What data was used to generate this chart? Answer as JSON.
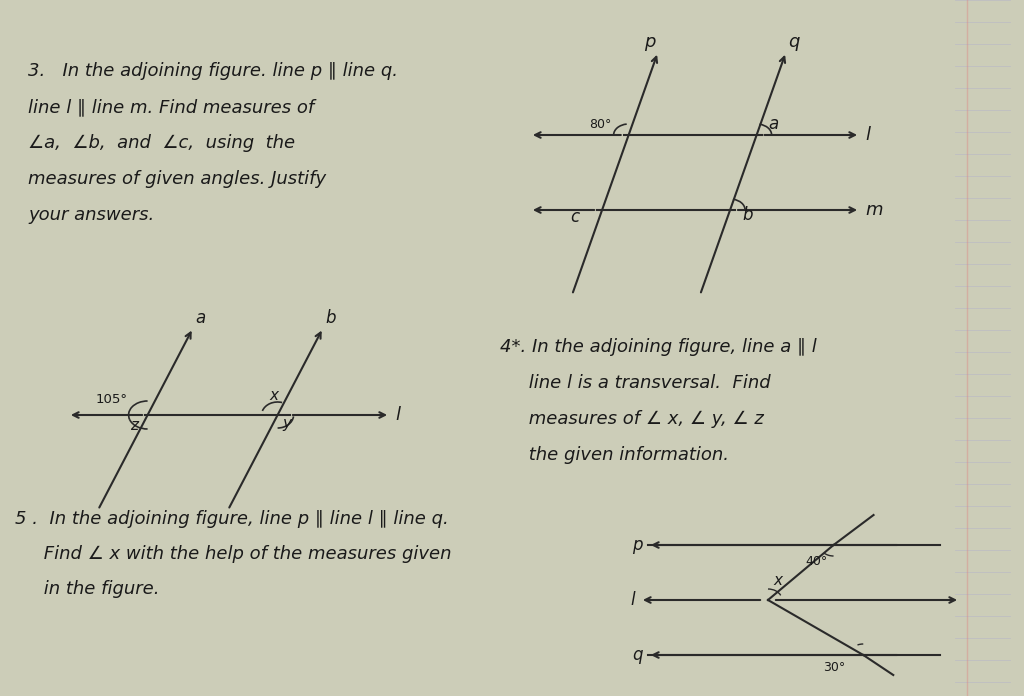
{
  "bg_color": "#c8c9b8",
  "text_color": "#1a1a1a",
  "line_color": "#2a2a2a",
  "q3_text_lines": [
    "3.   In the adjoining figure. line p ∥ line q.",
    "line l ∥ line m. Find measures of",
    "∠a,  ∠b,  and  ∠c,  using  the",
    "measures of given angles. Justify",
    "your answers."
  ],
  "q4_text_lines": [
    "4*. In the adjoining figure, line a ∥ l",
    "     line l is a transversal.  Find",
    "     measures of ∠ x, ∠ y, ∠ z",
    "     the given information."
  ],
  "q5_text_lines": [
    "5 .  In the adjoining figure, line p ∥ line l ∥ line q.",
    "     Find ∠ x with the help of the measures given",
    "     in the figure."
  ],
  "angle_80": "80°",
  "angle_105": "105°",
  "angle_40": "40°",
  "angle_30": "30°"
}
